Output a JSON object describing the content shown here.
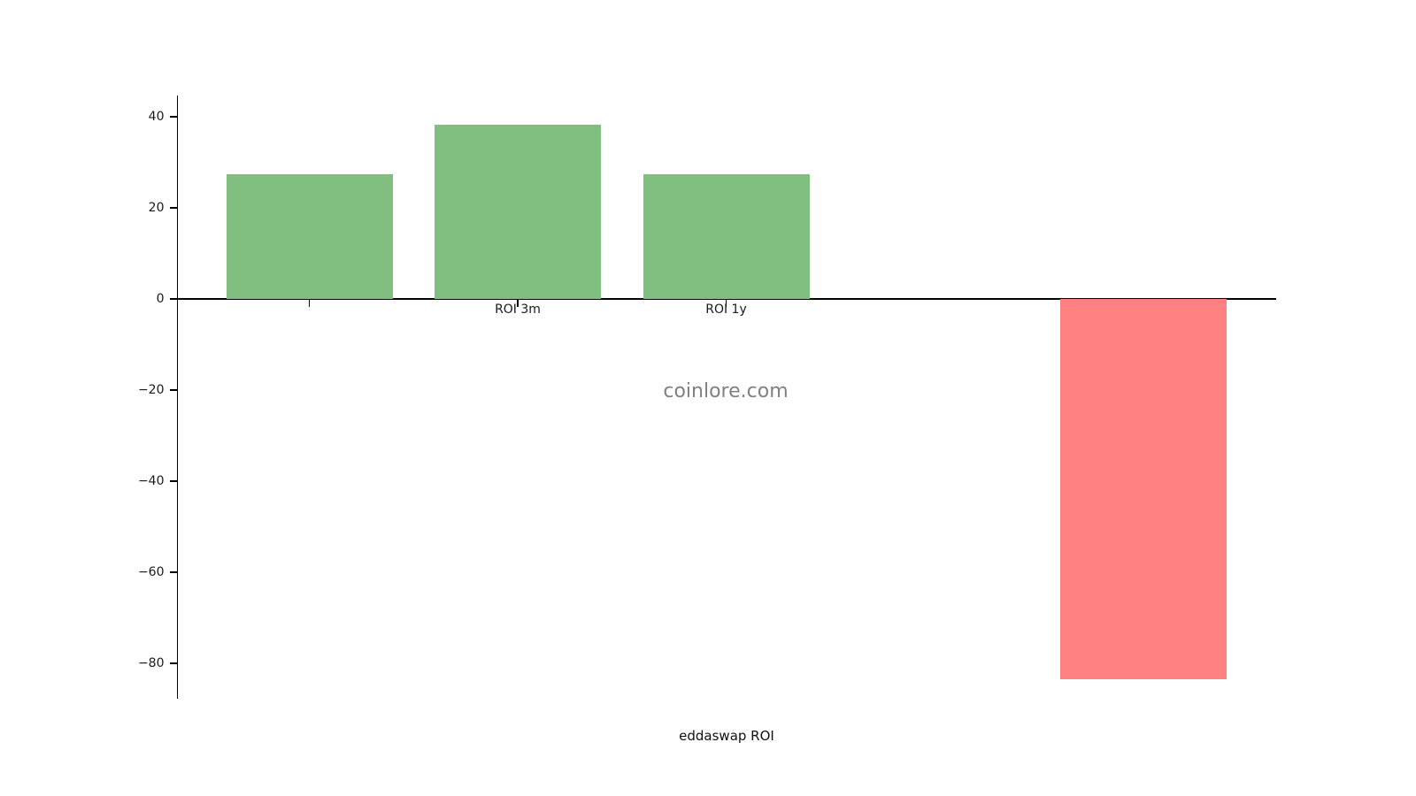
{
  "page": {
    "background": "#ffffff"
  },
  "chart_data": {
    "type": "bar",
    "title": "",
    "xlabel": "eddaswap ROI",
    "ylabel": "",
    "watermark": "coinlore.com",
    "categories": [
      "",
      "ROI 3m",
      "ROI 1y",
      "",
      ""
    ],
    "values": [
      27.4,
      38.3,
      27.4,
      null,
      -83.5
    ],
    "bar_colors": [
      "#80bf80",
      "#80bf80",
      "#80bf80",
      null,
      "#ff8080"
    ],
    "positive_color": "#80bf80",
    "negative_color": "#ff8080",
    "y_tick_values": [
      40,
      20,
      0,
      -20,
      -40,
      -60,
      -80
    ],
    "y_tick_labels": [
      "40",
      "20",
      "0",
      "−20",
      "−40",
      "−60",
      "−80"
    ],
    "x_ticks": [
      {
        "slot": 0,
        "label": ""
      },
      {
        "slot": 1,
        "label": "ROI 3m"
      },
      {
        "slot": 2,
        "label": "ROI 1y"
      }
    ],
    "ylim": [
      -87.8,
      44.7
    ],
    "grid": false,
    "legend": null,
    "axis_color": "#000000",
    "tick_label_color": "#1a1a1a",
    "watermark_color": "#808080"
  }
}
